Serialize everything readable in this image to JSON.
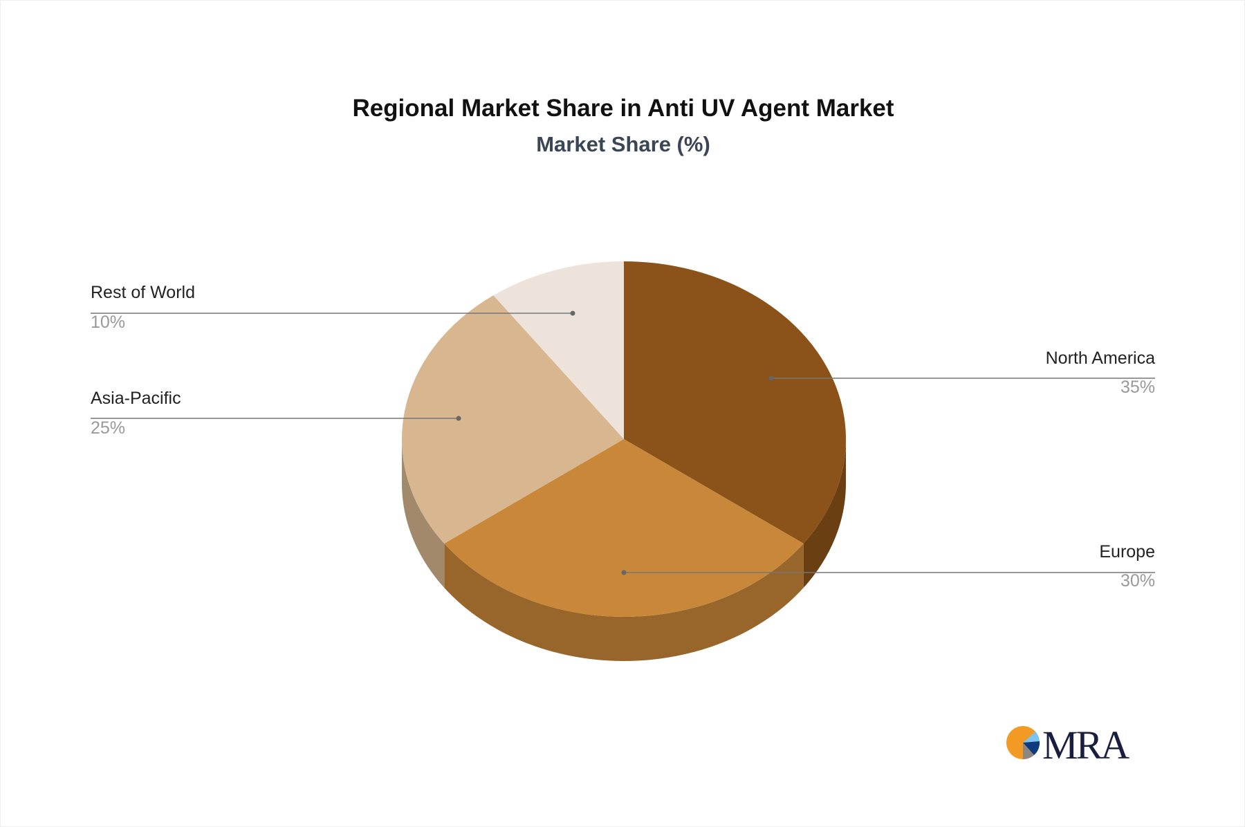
{
  "chart_data": {
    "type": "pie",
    "title": "Regional Market Share in Anti UV Agent Market",
    "subtitle": "Market Share (%)",
    "slices": [
      {
        "label": "North America",
        "value": 35,
        "value_label": "35%",
        "color": "#8B5319",
        "side_color": "#6A3F12"
      },
      {
        "label": "Europe",
        "value": 30,
        "value_label": "30%",
        "color": "#C9873A",
        "side_color": "#98652A"
      },
      {
        "label": "Asia-Pacific",
        "value": 25,
        "value_label": "25%",
        "color": "#D7B690",
        "side_color": "#A3896C"
      },
      {
        "label": "Rest of World",
        "value": 10,
        "value_label": "10%",
        "color": "#EDE3DA",
        "side_color": "#BDB3AA"
      }
    ],
    "style": "3d-pie"
  },
  "logo": {
    "text": "MRA"
  }
}
